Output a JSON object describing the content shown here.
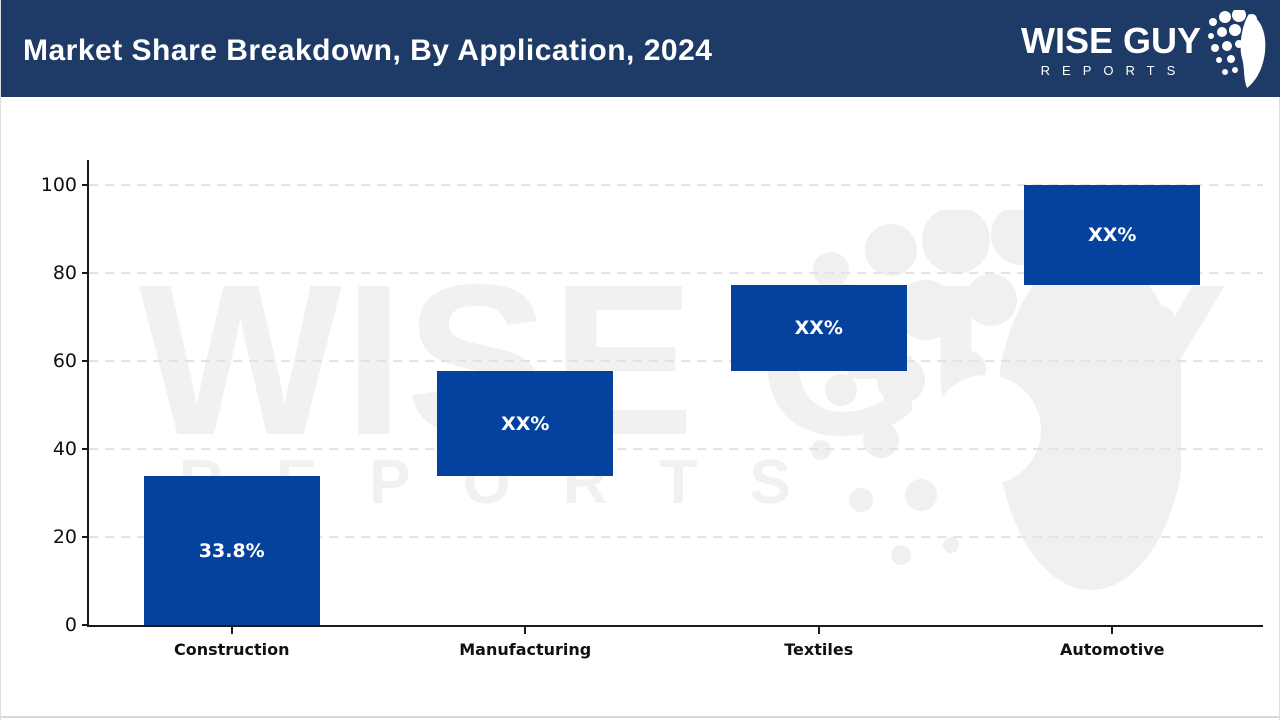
{
  "page": {
    "bg": "#ffffff",
    "border_color": "#d9d9d9"
  },
  "header": {
    "bg": "#1e3a66",
    "title": "Market Share Breakdown, By Application, 2024",
    "logo": {
      "line1": "WISE GUY",
      "line2": "REPORTS"
    }
  },
  "watermark": {
    "line1": "WISE GUY",
    "line2": "REPORTS"
  },
  "chart_data": {
    "type": "bar",
    "subtype": "waterfall",
    "title": "Market Share Breakdown, By Application, 2024",
    "categories": [
      "Construction",
      "Manufacturing",
      "Textiles",
      "Automotive"
    ],
    "series": [
      {
        "name": "Market Share",
        "segments": [
          {
            "category": "Construction",
            "start": 0,
            "end": 33.8,
            "label": "33.8%"
          },
          {
            "category": "Manufacturing",
            "start": 33.8,
            "end": 57.7,
            "label": "XX%"
          },
          {
            "category": "Textiles",
            "start": 57.7,
            "end": 77.3,
            "label": "XX%"
          },
          {
            "category": "Automotive",
            "start": 77.3,
            "end": 100,
            "label": "XX%"
          }
        ]
      }
    ],
    "xlabel": "",
    "ylabel": "",
    "ylim": [
      0,
      100
    ],
    "yticks": [
      0,
      20,
      40,
      60,
      80,
      100
    ],
    "grid": true,
    "legend": false,
    "bar_color": "#05429e",
    "bar_label_color": "#ffffff",
    "axis_color": "#1a1a1a",
    "gridline_color": "#e3e3e3"
  }
}
